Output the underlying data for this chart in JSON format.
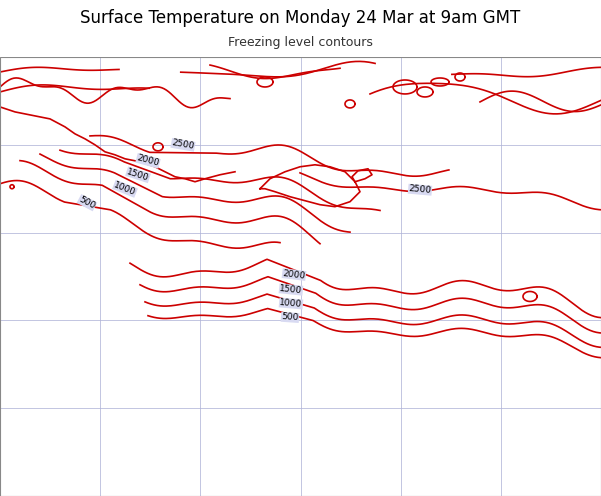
{
  "title": "Surface Temperature on Monday 24 Mar at 9am GMT",
  "subtitle": "Freezing level contours",
  "bg_color": "#d8daf2",
  "title_color": "#000000",
  "subtitle_color": "#333333",
  "title_fontsize": 12,
  "subtitle_fontsize": 9,
  "contour_color": "#cc0000",
  "grid_color": "#b0b4d8",
  "lw": 1.2
}
